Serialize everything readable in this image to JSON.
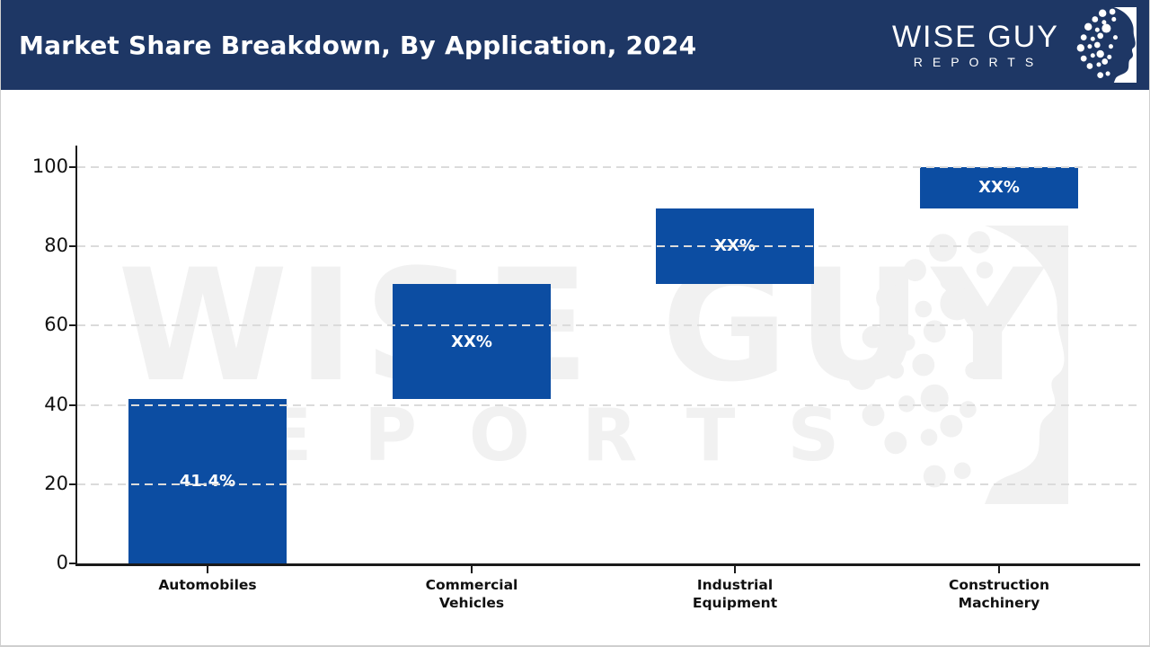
{
  "header": {
    "title": "Market Share Breakdown, By Application, 2024",
    "logo": {
      "wordmark": "WISE GUY",
      "subtext": "REPORTS"
    },
    "bg_color": "#1e3765"
  },
  "watermark": {
    "line1": "WISE GUY",
    "line2": "REPORTS"
  },
  "chart_data": {
    "type": "bar",
    "subtype": "waterfall",
    "title": "Market Share Breakdown, By Application, 2024",
    "categories": [
      "Automobiles",
      "Commercial\nVehicles",
      "Industrial\nEquipment",
      "Construction\nMachinery"
    ],
    "bars": [
      {
        "category": "Automobiles",
        "start": 0,
        "end": 41.4,
        "label": "41.4%"
      },
      {
        "category": "Commercial Vehicles",
        "start": 41.4,
        "end": 70.5,
        "label": "XX%"
      },
      {
        "category": "Industrial Equipment",
        "start": 70.5,
        "end": 89.6,
        "label": "XX%"
      },
      {
        "category": "Construction Machinery",
        "start": 89.6,
        "end": 100,
        "label": "XX%"
      }
    ],
    "xlabel": "",
    "ylabel": "",
    "ylim": [
      0,
      100
    ],
    "yticks": [
      0,
      20,
      40,
      60,
      80,
      100
    ],
    "grid": "horizontal-dashed",
    "bar_color": "#0c4da2",
    "grid_color": "#dbdbdb",
    "axis_color": "#1a1a1a",
    "label_color": "#ffffff"
  }
}
